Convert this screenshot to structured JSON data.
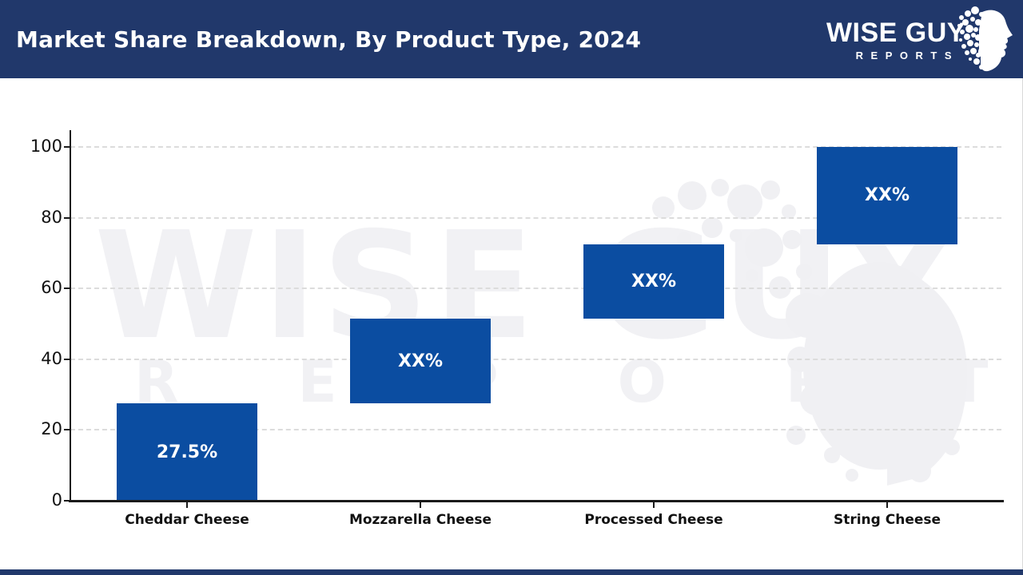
{
  "header": {
    "title": "Market Share Breakdown, By Product Type, 2024",
    "logo": {
      "line1": "WISE GUY",
      "line2": "REPORTS"
    }
  },
  "watermark": {
    "line1": "WISE GUY",
    "line2": "REPORTS"
  },
  "colors": {
    "header_bg": "#21386b",
    "bar_fill": "#0b4da1",
    "bar_label": "#ffffff",
    "gridline": "#dcdcdc",
    "axis": "#1a1a1a",
    "watermark": "#f1f1f4"
  },
  "chart_data": {
    "type": "bar",
    "subtype": "floating-waterfall",
    "title": "Market Share Breakdown, By Product Type, 2024",
    "categories": [
      "Cheddar Cheese",
      "Mozzarella Cheese",
      "Processed Cheese",
      "String Cheese"
    ],
    "segments": [
      {
        "category": "Cheddar Cheese",
        "start": 0,
        "end": 27.5,
        "value": 27.5,
        "label": "27.5%"
      },
      {
        "category": "Mozzarella Cheese",
        "start": 27.5,
        "end": 51.5,
        "value": 24,
        "label": "XX%"
      },
      {
        "category": "Processed Cheese",
        "start": 51.5,
        "end": 72.5,
        "value": 21,
        "label": "XX%"
      },
      {
        "category": "String Cheese",
        "start": 72.5,
        "end": 100,
        "value": 27.5,
        "label": "XX%"
      }
    ],
    "xlabel": "",
    "ylabel": "",
    "ylim": [
      0,
      100
    ],
    "yticks": [
      0,
      20,
      40,
      60,
      80,
      100
    ],
    "grid": "horizontal-dashed",
    "legend": "none",
    "unit": "percent"
  }
}
